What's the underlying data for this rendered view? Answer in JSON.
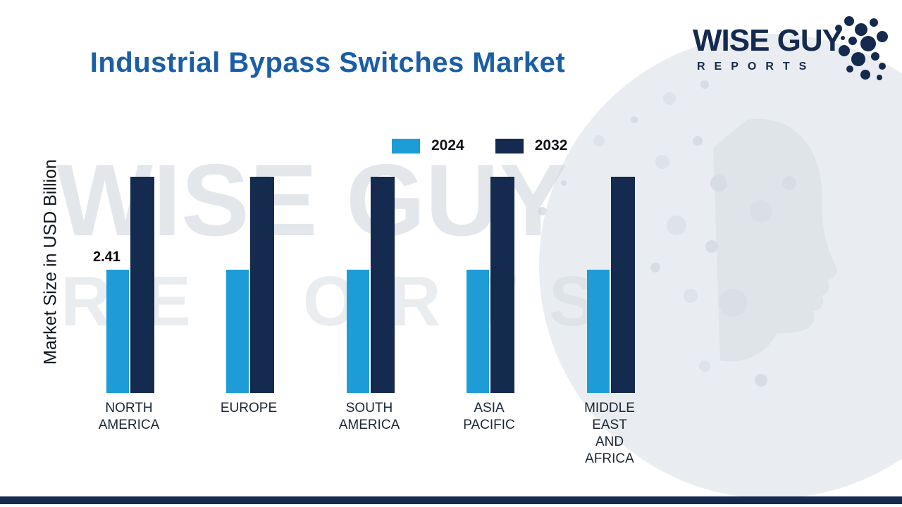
{
  "title": "Industrial Bypass Switches Market",
  "logo": {
    "wordmark": "WISE GUY",
    "subtitle": "REPORTS"
  },
  "watermark": {
    "line1": "WISE GUY",
    "line2": "REPORTS"
  },
  "chart_data": {
    "type": "bar",
    "title": "Industrial Bypass Switches Market",
    "ylabel": "Market Size in USD Billion",
    "categories": [
      "NORTH AMERICA",
      "EUROPE",
      "SOUTH AMERICA",
      "ASIA PACIFIC",
      "MIDDLE EAST AND AFRICA"
    ],
    "categories_lines": [
      [
        "NORTH",
        "AMERICA"
      ],
      [
        "EUROPE"
      ],
      [
        "SOUTH",
        "AMERICA"
      ],
      [
        "ASIA",
        "PACIFIC"
      ],
      [
        "MIDDLE",
        "EAST",
        "AND",
        "AFRICA"
      ]
    ],
    "series": [
      {
        "name": "2024",
        "color": "#1e9cd7",
        "values": [
          2.41,
          2.41,
          2.41,
          2.41,
          2.41
        ]
      },
      {
        "name": "2032",
        "color": "#142a4e",
        "values": [
          4.23,
          4.23,
          4.23,
          4.23,
          4.23
        ]
      }
    ],
    "annotations": [
      {
        "series": "2024",
        "category_index": 0,
        "text": "2.41"
      }
    ],
    "ylim": [
      0,
      4.6
    ],
    "grid": false,
    "legend_position": "top"
  }
}
